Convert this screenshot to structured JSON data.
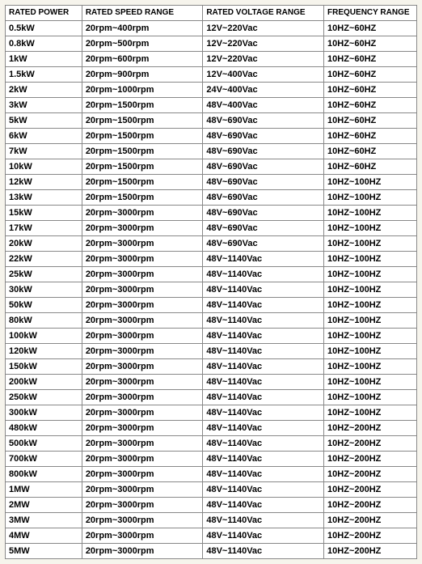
{
  "table": {
    "columns": [
      "RATED POWER",
      "RATED SPEED RANGE",
      "RATED VOLTAGE RANGE",
      "FREQUENCY RANGE"
    ],
    "rows": [
      [
        "0.5kW",
        "20rpm~400rpm",
        "12V~220Vac",
        "10HZ~60HZ"
      ],
      [
        "0.8kW",
        "20rpm~500rpm",
        "12V~220Vac",
        "10HZ~60HZ"
      ],
      [
        "1kW",
        "20rpm~600rpm",
        "12V~220Vac",
        "10HZ~60HZ"
      ],
      [
        "1.5kW",
        "20rpm~900rpm",
        "12V~400Vac",
        "10HZ~60HZ"
      ],
      [
        "2kW",
        "20rpm~1000rpm",
        "24V~400Vac",
        "10HZ~60HZ"
      ],
      [
        "3kW",
        "20rpm~1500rpm",
        "48V~400Vac",
        "10HZ~60HZ"
      ],
      [
        "5kW",
        "20rpm~1500rpm",
        "48V~690Vac",
        "10HZ~60HZ"
      ],
      [
        "6kW",
        "20rpm~1500rpm",
        "48V~690Vac",
        "10HZ~60HZ"
      ],
      [
        "7kW",
        "20rpm~1500rpm",
        "48V~690Vac",
        "10HZ~60HZ"
      ],
      [
        "10kW",
        "20rpm~1500rpm",
        "48V~690Vac",
        "10HZ~60HZ"
      ],
      [
        "12kW",
        "20rpm~1500rpm",
        "48V~690Vac",
        "10HZ~100HZ"
      ],
      [
        "13kW",
        "20rpm~1500rpm",
        "48V~690Vac",
        "10HZ~100HZ"
      ],
      [
        "15kW",
        "20rpm~3000rpm",
        "48V~690Vac",
        "10HZ~100HZ"
      ],
      [
        "17kW",
        "20rpm~3000rpm",
        "48V~690Vac",
        "10HZ~100HZ"
      ],
      [
        "20kW",
        "20rpm~3000rpm",
        "48V~690Vac",
        "10HZ~100HZ"
      ],
      [
        "22kW",
        "20rpm~3000rpm",
        "48V~1140Vac",
        "10HZ~100HZ"
      ],
      [
        "25kW",
        "20rpm~3000rpm",
        "48V~1140Vac",
        "10HZ~100HZ"
      ],
      [
        "30kW",
        "20rpm~3000rpm",
        "48V~1140Vac",
        "10HZ~100HZ"
      ],
      [
        "50kW",
        "20rpm~3000rpm",
        "48V~1140Vac",
        "10HZ~100HZ"
      ],
      [
        "80kW",
        "20rpm~3000rpm",
        "48V~1140Vac",
        "10HZ~100HZ"
      ],
      [
        "100kW",
        "20rpm~3000rpm",
        "48V~1140Vac",
        "10HZ~100HZ"
      ],
      [
        "120kW",
        "20rpm~3000rpm",
        "48V~1140Vac",
        "10HZ~100HZ"
      ],
      [
        "150kW",
        "20rpm~3000rpm",
        "48V~1140Vac",
        "10HZ~100HZ"
      ],
      [
        "200kW",
        "20rpm~3000rpm",
        "48V~1140Vac",
        "10HZ~100HZ"
      ],
      [
        "250kW",
        "20rpm~3000rpm",
        "48V~1140Vac",
        "10HZ~100HZ"
      ],
      [
        "300kW",
        "20rpm~3000rpm",
        "48V~1140Vac",
        "10HZ~100HZ"
      ],
      [
        "480kW",
        "20rpm~3000rpm",
        "48V~1140Vac",
        "10HZ~200HZ"
      ],
      [
        "500kW",
        "20rpm~3000rpm",
        "48V~1140Vac",
        "10HZ~200HZ"
      ],
      [
        "700kW",
        "20rpm~3000rpm",
        "48V~1140Vac",
        "10HZ~200HZ"
      ],
      [
        "800kW",
        "20rpm~3000rpm",
        "48V~1140Vac",
        "10HZ~200HZ"
      ],
      [
        "1MW",
        "20rpm~3000rpm",
        "48V~1140Vac",
        "10HZ~200HZ"
      ],
      [
        "2MW",
        "20rpm~3000rpm",
        "48V~1140Vac",
        "10HZ~200HZ"
      ],
      [
        "3MW",
        "20rpm~3000rpm",
        "48V~1140Vac",
        "10HZ~200HZ"
      ],
      [
        "4MW",
        "20rpm~3000rpm",
        "48V~1140Vac",
        "10HZ~200HZ"
      ],
      [
        "5MW",
        "20rpm~3000rpm",
        "48V~1140Vac",
        "10HZ~200HZ"
      ]
    ]
  }
}
